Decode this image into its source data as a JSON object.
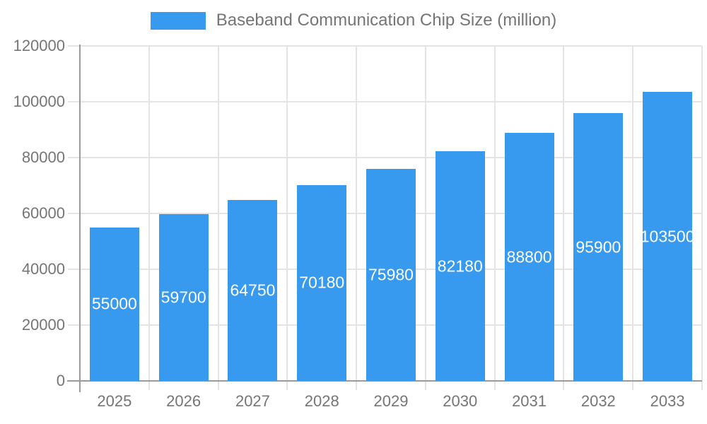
{
  "chart_data": {
    "type": "bar",
    "legend_label": "Baseband Communication Chip Size (million)",
    "categories": [
      "2025",
      "2026",
      "2027",
      "2028",
      "2029",
      "2030",
      "2031",
      "2032",
      "2033"
    ],
    "values": [
      55000,
      59700,
      64750,
      70180,
      75980,
      82180,
      88800,
      95900,
      103500
    ],
    "bar_labels": [
      "55000",
      "59700",
      "64750",
      "70180",
      "75980",
      "82180",
      "88800",
      "95900",
      "103500"
    ],
    "y_ticks": [
      0,
      20000,
      40000,
      60000,
      80000,
      100000,
      120000
    ],
    "y_tick_labels": [
      "0",
      "20000",
      "40000",
      "60000",
      "80000",
      "100000",
      "120000"
    ],
    "ylim": [
      0,
      120000
    ],
    "xlabel": "",
    "ylabel": "",
    "grid": true,
    "legend_position": "top-center",
    "colors": {
      "bar": "#389AEE",
      "bar_label": "#ffffff",
      "axis_label": "#757575",
      "legend_text": "#757575",
      "gridline": "#e4e4e4",
      "axis_line": "#9a9a9a"
    }
  }
}
